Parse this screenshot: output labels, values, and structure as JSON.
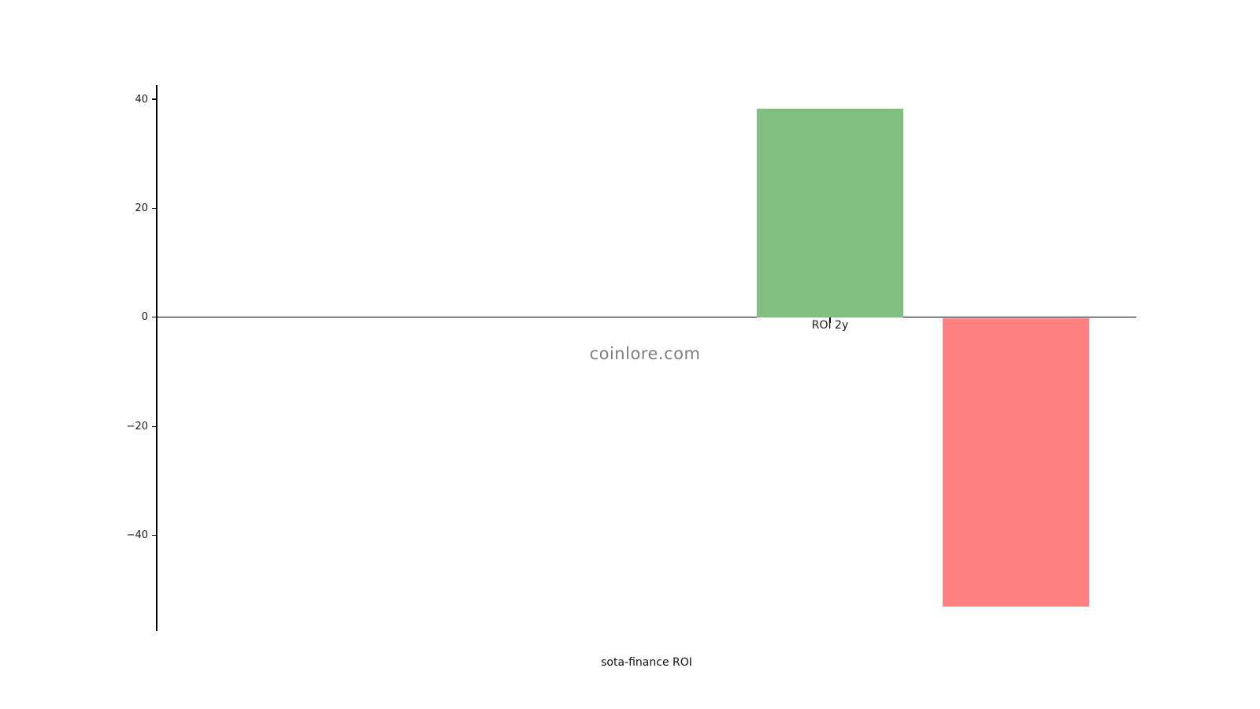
{
  "chart_data": {
    "type": "bar",
    "categories": [
      "ROI 2y",
      ""
    ],
    "values": [
      38.2,
      -52.9
    ],
    "bar_colors": [
      "#80bf80",
      "#ff8080"
    ],
    "title": "",
    "xlabel": "sota-finance ROI",
    "ylabel": "",
    "yticks": [
      40,
      20,
      0,
      -20,
      -40
    ],
    "ylim": [
      -57.5,
      42.6
    ],
    "grid": false,
    "legend": "none",
    "zero_baseline": true
  },
  "watermark": {
    "text": "coinlore.com",
    "color": "#7f7f7f"
  },
  "colors": {
    "positive_bar": "#80bf80",
    "negative_bar": "#ff8080",
    "axis": "#000000",
    "background": "#ffffff"
  }
}
